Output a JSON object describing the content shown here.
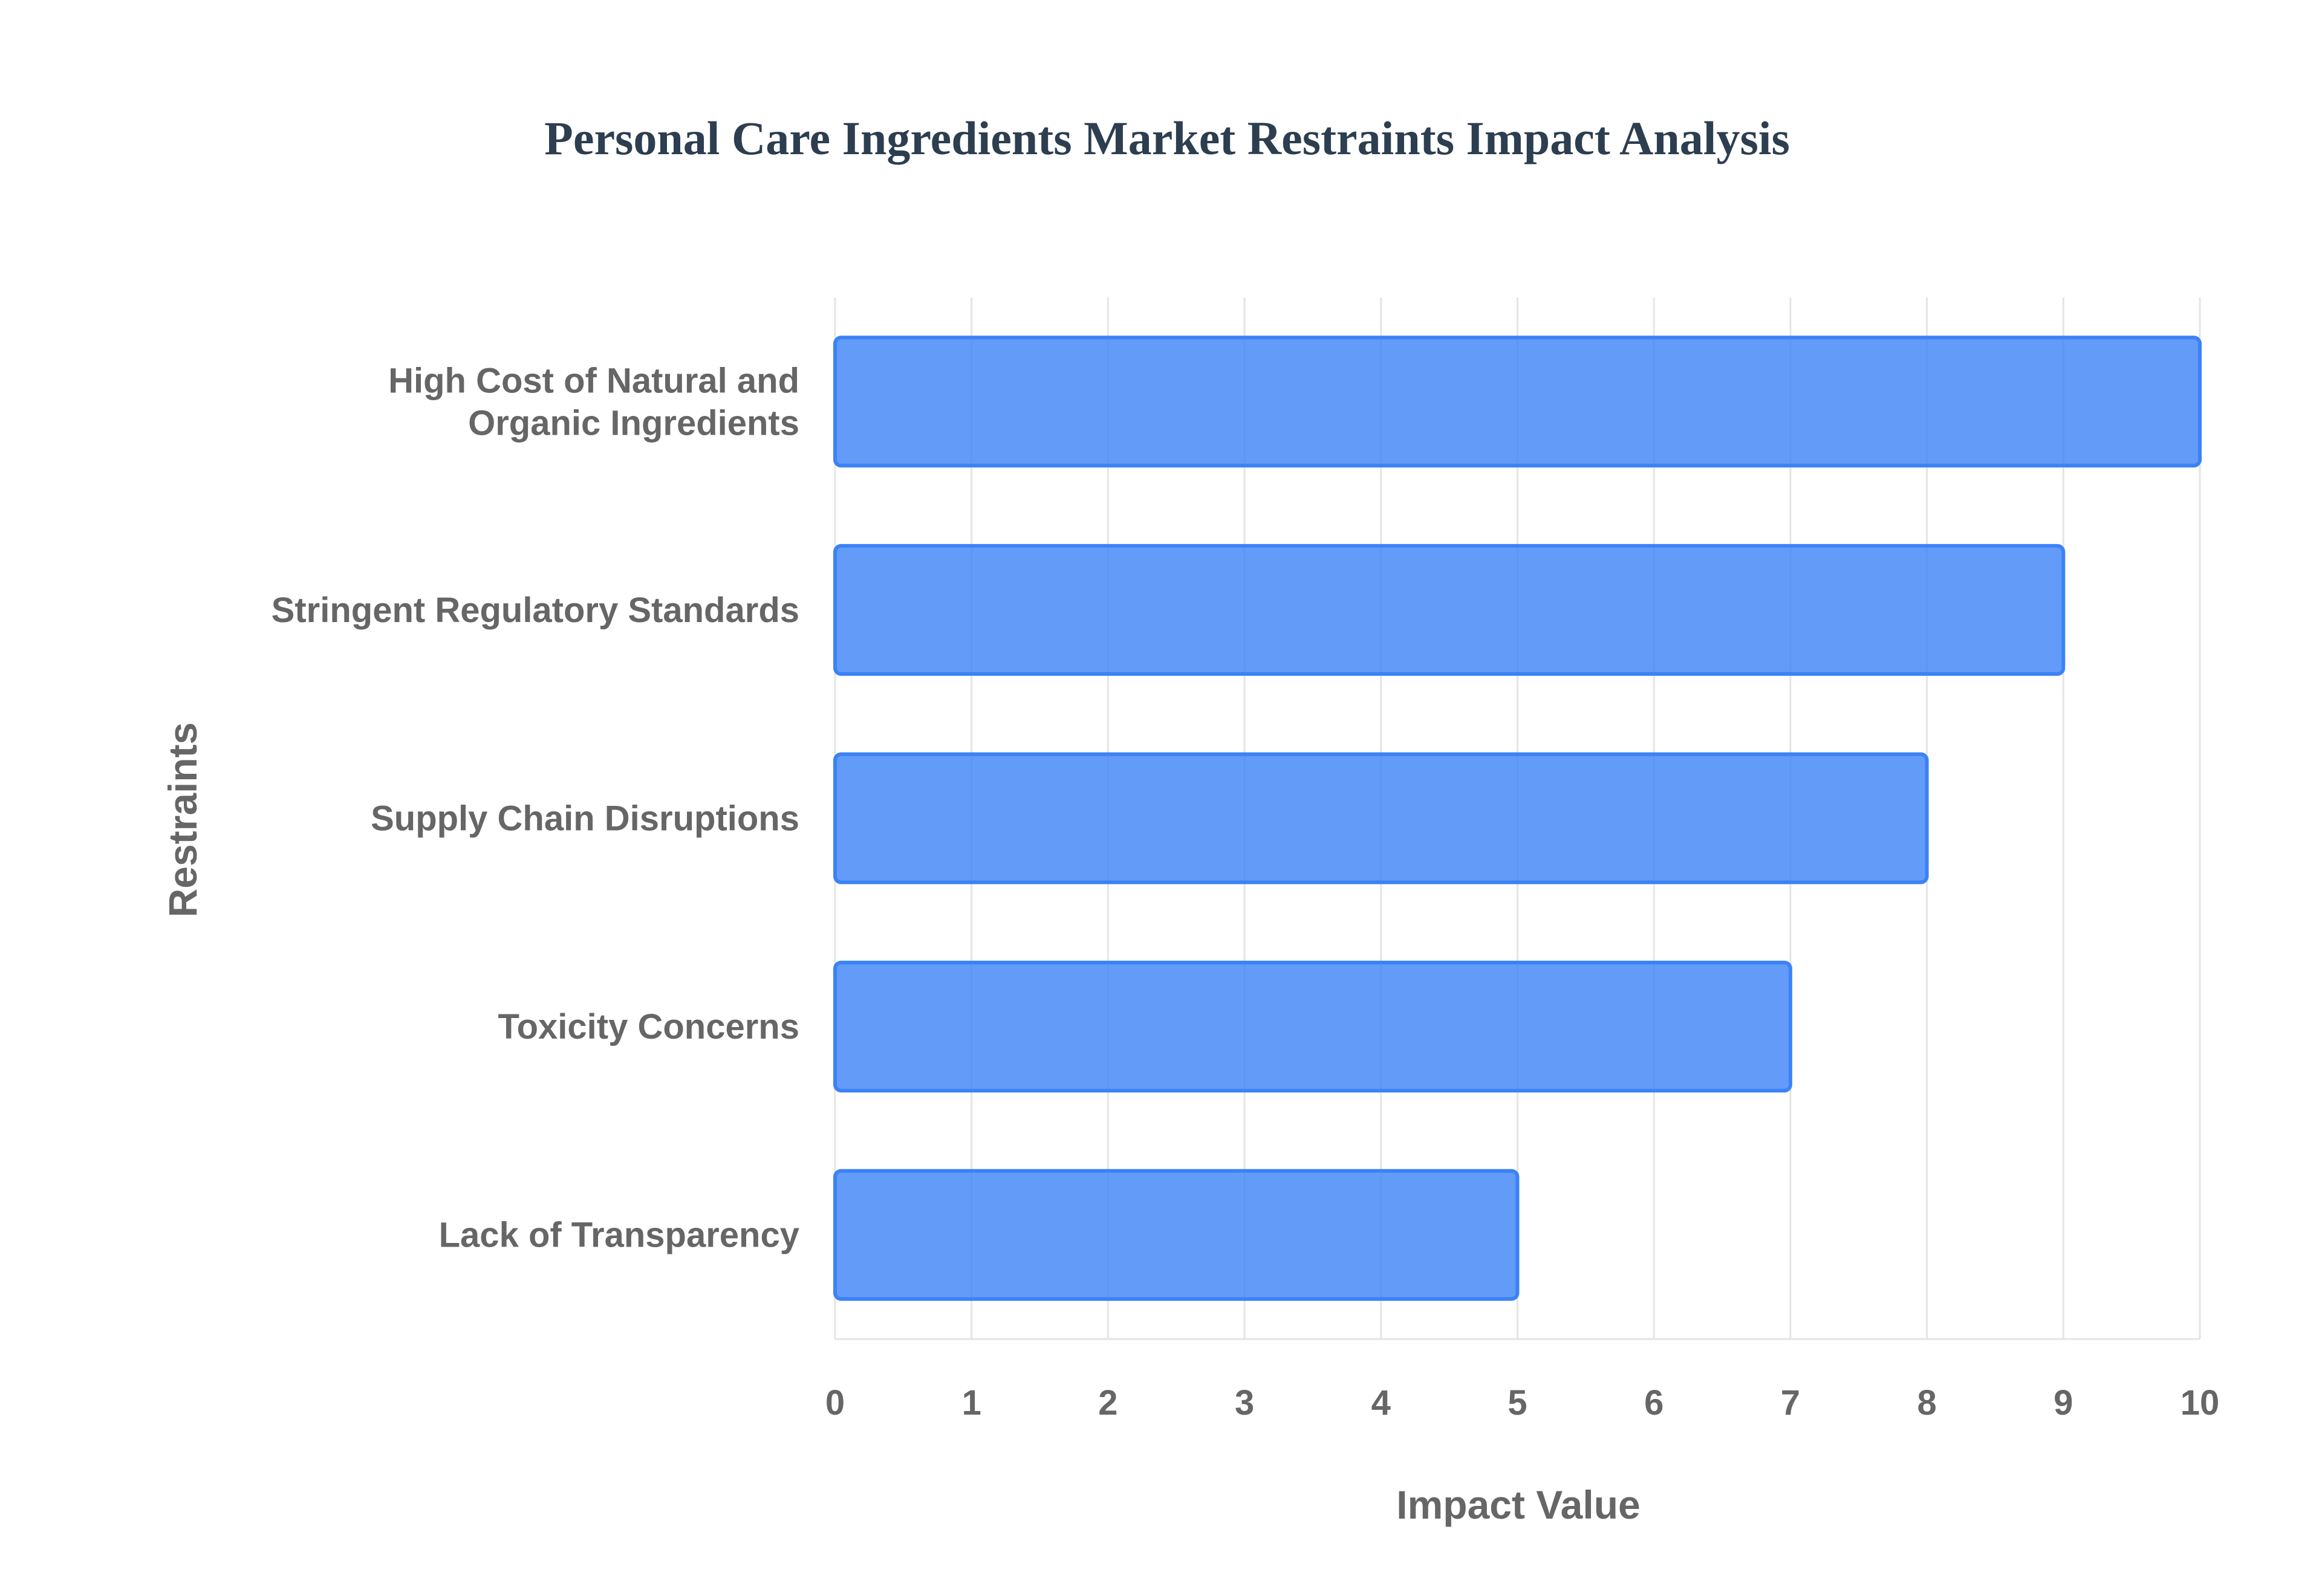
{
  "chart_data": {
    "type": "bar",
    "orientation": "horizontal",
    "title": "Personal Care Ingredients Market Restraints Impact Analysis",
    "xlabel": "Impact Value",
    "ylabel": "Restraints",
    "categories": [
      [
        "High Cost of Natural and",
        "Organic Ingredients"
      ],
      [
        "Stringent Regulatory Standards"
      ],
      [
        "Supply Chain Disruptions"
      ],
      [
        "Toxicity Concerns"
      ],
      [
        "Lack of Transparency"
      ]
    ],
    "values": [
      10,
      9,
      8,
      7,
      5
    ],
    "xlim": [
      0,
      10
    ],
    "xticks": [
      "0",
      "1",
      "2",
      "3",
      "4",
      "5",
      "6",
      "7",
      "8",
      "9",
      "10"
    ],
    "grid": true,
    "legend": "none",
    "colors": {
      "bar_fill": "#3b82f6",
      "bar_fill_opacity": 0.8,
      "bar_stroke": "#3b82f6",
      "grid": "#e5e5e5"
    }
  }
}
